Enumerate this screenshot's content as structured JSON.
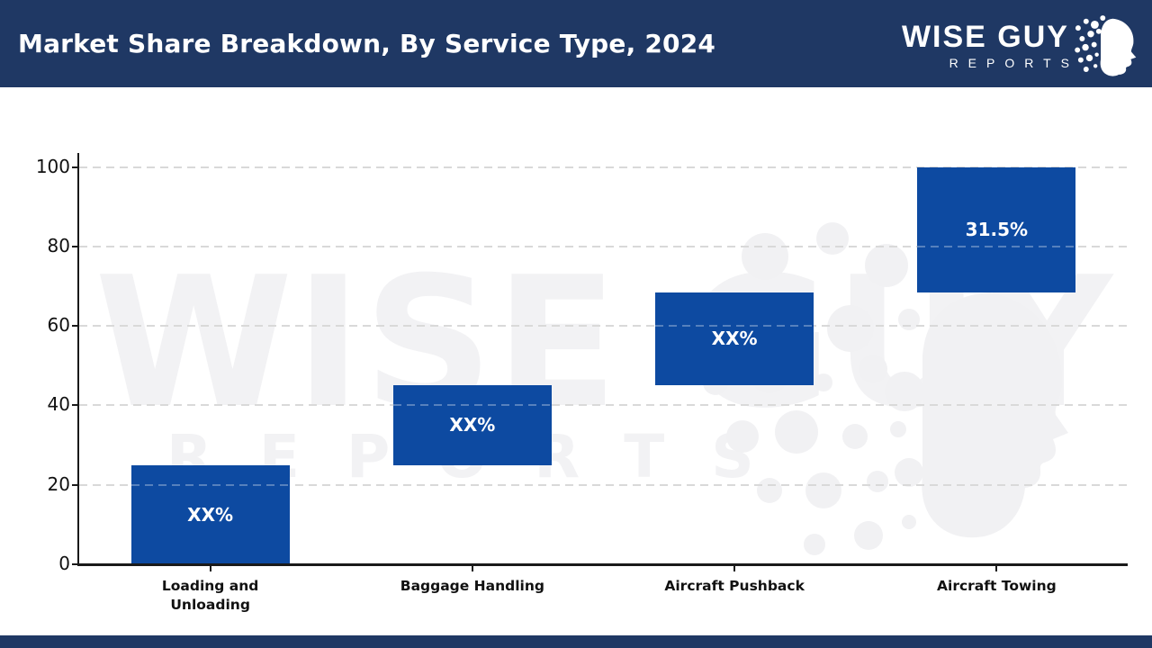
{
  "header": {
    "title": "Market Share Breakdown, By Service Type, 2024",
    "bg_color": "#1f3864",
    "logo": {
      "line1": "WISE GUY",
      "line2": "REPORTS"
    }
  },
  "watermark": {
    "line1": "WISE GUY",
    "line2": "REPORTS"
  },
  "footer": {
    "bg_color": "#1f3864"
  },
  "chart_data": {
    "type": "bar",
    "subtype": "floating-segment-waterfall",
    "title": "Market Share Breakdown, By Service Type, 2024",
    "categories": [
      "Loading and\nUnloading",
      "Baggage Handling",
      "Aircraft Pushback",
      "Aircraft Towing"
    ],
    "segments": [
      [
        0,
        25
      ],
      [
        25,
        45
      ],
      [
        45,
        68.5
      ],
      [
        68.5,
        100
      ]
    ],
    "bar_labels": [
      "XX%",
      "XX%",
      "XX%",
      "31.5%"
    ],
    "xlabel": "",
    "ylabel": "",
    "ylim": [
      0,
      100
    ],
    "yticks": [
      0,
      20,
      40,
      60,
      80,
      100
    ],
    "grid": "horizontal-dashed",
    "legend": "none",
    "bar_color": "#0d4aa1",
    "bar_label_color": "#ffffff",
    "axis_color": "#1a1a1a",
    "gridline_color": "#d9d9d9"
  }
}
